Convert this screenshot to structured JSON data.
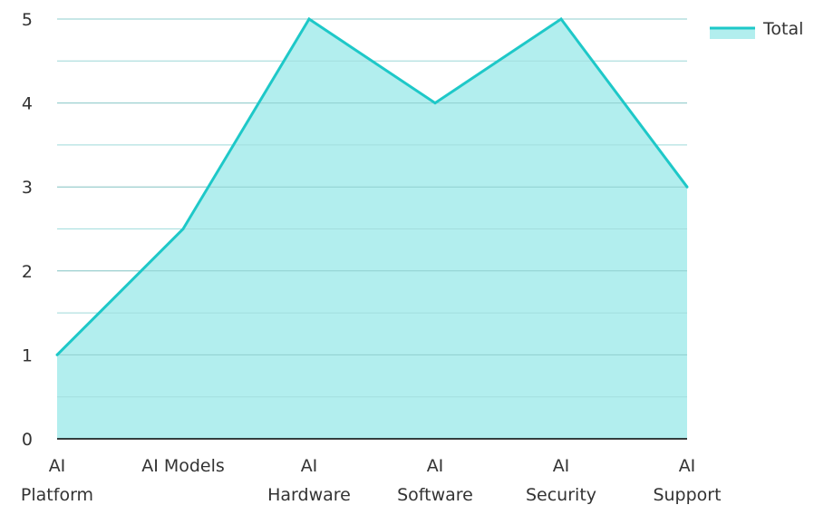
{
  "chart_data": {
    "type": "area",
    "categories": [
      [
        "AI",
        "Platform"
      ],
      [
        "AI Models"
      ],
      [
        "AI",
        "Hardware"
      ],
      [
        "AI",
        "Software"
      ],
      [
        "AI",
        "Security"
      ],
      [
        "AI",
        "Support"
      ]
    ],
    "series": [
      {
        "name": "Total",
        "values": [
          1,
          2.5,
          5,
          4,
          5,
          3
        ]
      }
    ],
    "ylim": [
      0,
      5
    ],
    "yticks": [
      "0",
      "1",
      "2",
      "3",
      "4",
      "5"
    ],
    "grid": true,
    "legend_position": "top-right",
    "colors": {
      "line": "#1ec8c8",
      "fill": "#b2eeee",
      "grid": "#cccccc",
      "axis": "#000000"
    }
  }
}
